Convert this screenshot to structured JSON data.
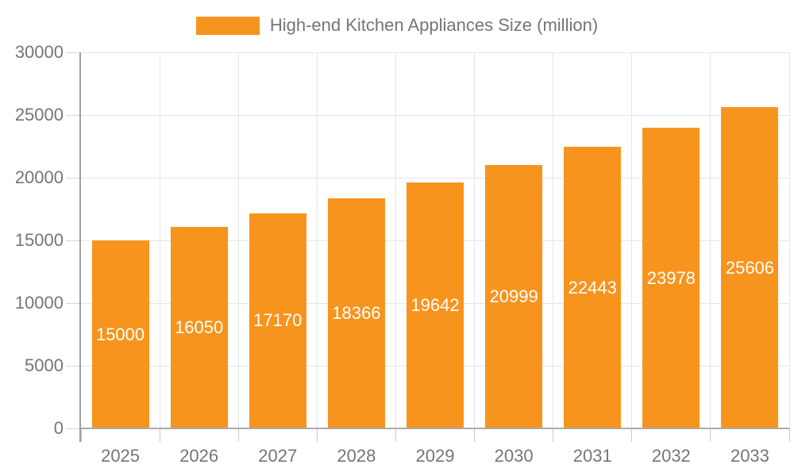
{
  "legend": {
    "label": "High-end Kitchen Appliances Size (million)"
  },
  "chart_data": {
    "type": "bar",
    "title": "High-end Kitchen Appliances Size (million)",
    "series_name": "High-end Kitchen Appliances Size (million)",
    "categories": [
      "2025",
      "2026",
      "2027",
      "2028",
      "2029",
      "2030",
      "2031",
      "2032",
      "2033"
    ],
    "values": [
      15000,
      16050,
      17170,
      18366,
      19642,
      20999,
      22443,
      23978,
      25606
    ],
    "value_labels": [
      "15000",
      "16050",
      "17170",
      "18366",
      "19642",
      "20999",
      "22443",
      "23978",
      "25606"
    ],
    "xlabel": "",
    "ylabel": "",
    "ylim": [
      0,
      30000
    ],
    "ytick_step": 5000,
    "ytick_labels": [
      "0",
      "5000",
      "10000",
      "15000",
      "20000",
      "25000",
      "30000"
    ],
    "grid": "both",
    "legend_position": "top-center",
    "value_label_position": "inside-center"
  },
  "colors": {
    "bar": "#f7941e",
    "value_label": "#ffffff",
    "axis_text": "#757575",
    "gridline": "#e6e6e6",
    "axis_line": "#a0a0a0",
    "background": "#ffffff"
  }
}
